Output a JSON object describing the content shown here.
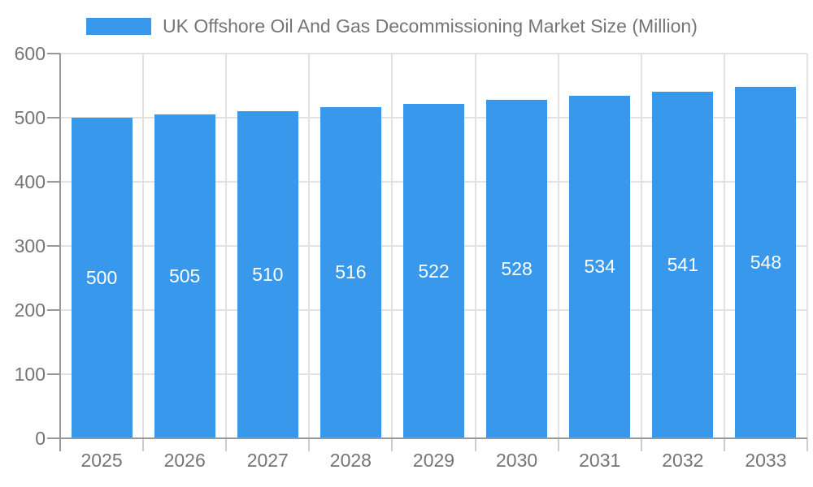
{
  "chart_data": {
    "type": "bar",
    "title": "UK Offshore Oil And Gas Decommissioning Market Size (Million)",
    "categories": [
      "2025",
      "2026",
      "2027",
      "2028",
      "2029",
      "2030",
      "2031",
      "2032",
      "2033"
    ],
    "values": [
      500,
      505,
      510,
      516,
      522,
      528,
      534,
      541,
      548
    ],
    "xlabel": "",
    "ylabel": "",
    "ylim": [
      0,
      600
    ],
    "ytick_step": 100,
    "grid": true,
    "legend_position": "top",
    "colors": {
      "bar": "#3899ec",
      "bar_label": "#ffffff",
      "grid": "#e2e2e2",
      "axis": "#999999",
      "x_tick": "#cccccc",
      "text": "#757575"
    }
  }
}
